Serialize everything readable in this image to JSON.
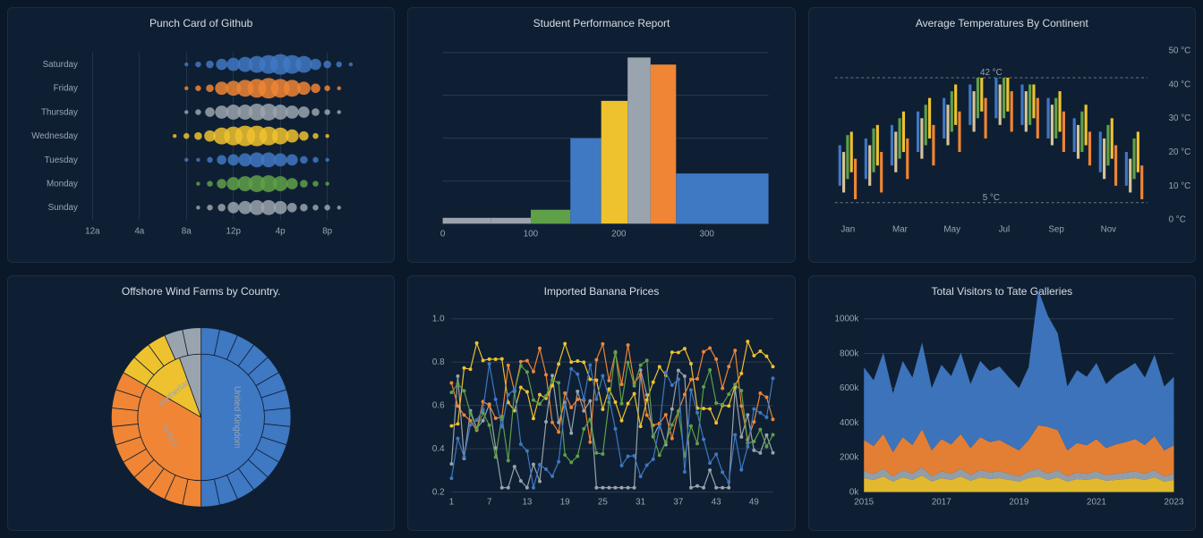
{
  "colors": {
    "bg": "#0f1f33",
    "blue": "#3f78c3",
    "orange": "#ef8535",
    "gray": "#9aa4ae",
    "yellow": "#eec22e",
    "green": "#5fa049",
    "pale": "#d6c39a",
    "teal": "#49a19a"
  },
  "punch": {
    "title": "Punch Card of Github",
    "days": [
      "Saturday",
      "Friday",
      "Thursday",
      "Wednesday",
      "Tuesday",
      "Monday",
      "Sunday"
    ],
    "hours_labels": [
      "12a",
      "4a",
      "8a",
      "12p",
      "4p",
      "8p"
    ],
    "day_colors": [
      "#3f78c3",
      "#ef8535",
      "#9aa4ae",
      "#eec22e",
      "#3f78c3",
      "#5fa049",
      "#9aa4ae"
    ],
    "data": [
      [
        0,
        0,
        0,
        0,
        0,
        0,
        0,
        0,
        1,
        2,
        3,
        5,
        6,
        7,
        8,
        9,
        10,
        9,
        8,
        5,
        3,
        2,
        1,
        0
      ],
      [
        0,
        0,
        0,
        0,
        0,
        0,
        0,
        0,
        1,
        2,
        3,
        6,
        7,
        8,
        9,
        10,
        9,
        8,
        6,
        4,
        2,
        1,
        0,
        0
      ],
      [
        0,
        0,
        0,
        0,
        0,
        0,
        0,
        0,
        1,
        2,
        4,
        6,
        7,
        7,
        8,
        8,
        7,
        6,
        5,
        3,
        2,
        1,
        0,
        0
      ],
      [
        0,
        0,
        0,
        0,
        0,
        0,
        0,
        1,
        2,
        3,
        5,
        8,
        9,
        10,
        10,
        9,
        8,
        6,
        4,
        2,
        1,
        0,
        0,
        0
      ],
      [
        0,
        0,
        0,
        0,
        0,
        0,
        0,
        0,
        1,
        1,
        2,
        4,
        5,
        6,
        7,
        7,
        6,
        5,
        3,
        2,
        1,
        0,
        0,
        0
      ],
      [
        0,
        0,
        0,
        0,
        0,
        0,
        0,
        0,
        0,
        1,
        2,
        4,
        6,
        7,
        8,
        8,
        7,
        5,
        3,
        2,
        1,
        0,
        0,
        0
      ],
      [
        0,
        0,
        0,
        0,
        0,
        0,
        0,
        0,
        0,
        1,
        2,
        3,
        5,
        6,
        7,
        7,
        6,
        4,
        3,
        2,
        2,
        1,
        0,
        0
      ]
    ]
  },
  "student": {
    "title": "Student Performance Report",
    "x_ticks": [
      0,
      100,
      200,
      300
    ],
    "bars": [
      {
        "x0": 0,
        "x1": 55,
        "h": 6,
        "c": "#9aa4ae"
      },
      {
        "x0": 55,
        "x1": 100,
        "h": 6,
        "c": "#9aa4ae"
      },
      {
        "x0": 100,
        "x1": 145,
        "h": 14,
        "c": "#5fa049"
      },
      {
        "x0": 145,
        "x1": 180,
        "h": 85,
        "c": "#3f78c3"
      },
      {
        "x0": 180,
        "x1": 210,
        "h": 122,
        "c": "#eec22e"
      },
      {
        "x0": 210,
        "x1": 236,
        "h": 165,
        "c": "#9aa4ae"
      },
      {
        "x0": 236,
        "x1": 265,
        "h": 158,
        "c": "#ef8535"
      },
      {
        "x0": 265,
        "x1": 370,
        "h": 50,
        "c": "#3f78c3"
      }
    ],
    "ymax": 170
  },
  "temps": {
    "title": "Average Temperatures By Continent",
    "x_labels": [
      "Jan",
      "Mar",
      "May",
      "Jul",
      "Sep",
      "Nov"
    ],
    "y_labels": [
      "0 °C",
      "10 °C",
      "20 °C",
      "30 °C",
      "40 °C",
      "50 °C"
    ],
    "marks": [
      {
        "y": 42,
        "label": "42 °C"
      },
      {
        "y": 5,
        "label": "5 °C"
      }
    ],
    "series_colors": [
      "#3f78c3",
      "#d6c39a",
      "#5fa049",
      "#eec22e",
      "#ef8535"
    ],
    "months_data": [
      [
        [
          10,
          22
        ],
        [
          8,
          20
        ],
        [
          12,
          25
        ],
        [
          14,
          26
        ],
        [
          6,
          18
        ]
      ],
      [
        [
          12,
          24
        ],
        [
          10,
          22
        ],
        [
          14,
          27
        ],
        [
          16,
          28
        ],
        [
          8,
          20
        ]
      ],
      [
        [
          16,
          28
        ],
        [
          14,
          26
        ],
        [
          18,
          30
        ],
        [
          20,
          32
        ],
        [
          12,
          24
        ]
      ],
      [
        [
          20,
          32
        ],
        [
          18,
          30
        ],
        [
          22,
          34
        ],
        [
          24,
          36
        ],
        [
          16,
          28
        ]
      ],
      [
        [
          24,
          36
        ],
        [
          22,
          34
        ],
        [
          26,
          38
        ],
        [
          28,
          40
        ],
        [
          20,
          32
        ]
      ],
      [
        [
          28,
          40
        ],
        [
          26,
          38
        ],
        [
          30,
          42
        ],
        [
          32,
          42
        ],
        [
          24,
          36
        ]
      ],
      [
        [
          30,
          42
        ],
        [
          28,
          40
        ],
        [
          30,
          42
        ],
        [
          32,
          42
        ],
        [
          26,
          38
        ]
      ],
      [
        [
          28,
          40
        ],
        [
          26,
          38
        ],
        [
          28,
          40
        ],
        [
          30,
          40
        ],
        [
          24,
          36
        ]
      ],
      [
        [
          24,
          36
        ],
        [
          22,
          34
        ],
        [
          24,
          36
        ],
        [
          26,
          38
        ],
        [
          20,
          32
        ]
      ],
      [
        [
          20,
          30
        ],
        [
          18,
          28
        ],
        [
          20,
          32
        ],
        [
          22,
          34
        ],
        [
          16,
          26
        ]
      ],
      [
        [
          14,
          26
        ],
        [
          12,
          24
        ],
        [
          16,
          28
        ],
        [
          18,
          30
        ],
        [
          10,
          22
        ]
      ],
      [
        [
          10,
          20
        ],
        [
          8,
          18
        ],
        [
          12,
          24
        ],
        [
          14,
          26
        ],
        [
          6,
          16
        ]
      ]
    ]
  },
  "wind": {
    "title": "Offshore Wind Farms by Country.",
    "countries": [
      {
        "name": "United Kingdom",
        "start": -90,
        "end": 90,
        "color": "#3f78c3"
      },
      {
        "name": "China",
        "start": 90,
        "end": 210,
        "color": "#ef8535"
      },
      {
        "name": "Netherlands",
        "start": 210,
        "end": 250,
        "color": "#eec22e"
      },
      {
        "name": "",
        "start": 250,
        "end": 270,
        "color": "#9aa4ae"
      }
    ],
    "outer_segments": 30
  },
  "banana": {
    "title": "Imported Banana Prices",
    "y_ticks": [
      0.2,
      0.4,
      0.6,
      0.8,
      1.0
    ],
    "x_ticks": [
      1,
      7,
      13,
      19,
      25,
      31,
      37,
      43,
      49
    ],
    "n": 52,
    "series": [
      {
        "color": "#9aa4ae",
        "base": 0.55,
        "amp": 0.22,
        "drop": true
      },
      {
        "color": "#ef8535",
        "base": 0.78,
        "amp": 0.12,
        "drop": false
      },
      {
        "color": "#eec22e",
        "base": 0.8,
        "amp": 0.1,
        "drop": false
      },
      {
        "color": "#5fa049",
        "base": 0.72,
        "amp": 0.13,
        "drop": false
      },
      {
        "color": "#3f78c3",
        "base": 0.65,
        "amp": 0.15,
        "drop": true
      }
    ]
  },
  "tate": {
    "title": "Total Visitors to Tate Galleries",
    "y_ticks": [
      "0k",
      "200k",
      "400k",
      "600k",
      "800k",
      "1000k"
    ],
    "x_ticks": [
      "2015",
      "2017",
      "2019",
      "2021",
      "2023"
    ],
    "ymax": 1000,
    "layers": [
      {
        "color": "#eec22e",
        "vals": [
          80,
          70,
          90,
          60,
          85,
          70,
          95,
          60,
          80,
          70,
          90,
          65,
          85,
          75,
          80,
          70,
          60,
          80,
          90,
          70,
          85,
          60,
          75,
          70,
          80,
          65,
          70,
          75,
          80,
          70,
          85,
          60,
          70
        ]
      },
      {
        "color": "#9aa4ae",
        "vals": [
          40,
          35,
          45,
          30,
          42,
          36,
          48,
          30,
          40,
          35,
          45,
          33,
          42,
          38,
          40,
          35,
          30,
          40,
          45,
          36,
          42,
          30,
          38,
          35,
          40,
          33,
          35,
          38,
          40,
          36,
          42,
          30,
          35
        ]
      },
      {
        "color": "#ef8535",
        "vals": [
          180,
          160,
          200,
          140,
          190,
          165,
          220,
          150,
          185,
          170,
          200,
          155,
          190,
          175,
          180,
          165,
          150,
          180,
          250,
          270,
          230,
          150,
          170,
          165,
          185,
          155,
          170,
          175,
          185,
          165,
          195,
          150,
          165
        ]
      },
      {
        "color": "#3f78c3",
        "vals": [
          420,
          380,
          470,
          340,
          440,
          390,
          500,
          360,
          430,
          395,
          470,
          370,
          440,
          410,
          425,
          390,
          360,
          420,
          780,
          640,
          560,
          370,
          420,
          395,
          440,
          370,
          400,
          420,
          440,
          390,
          470,
          370,
          395
        ]
      }
    ]
  }
}
